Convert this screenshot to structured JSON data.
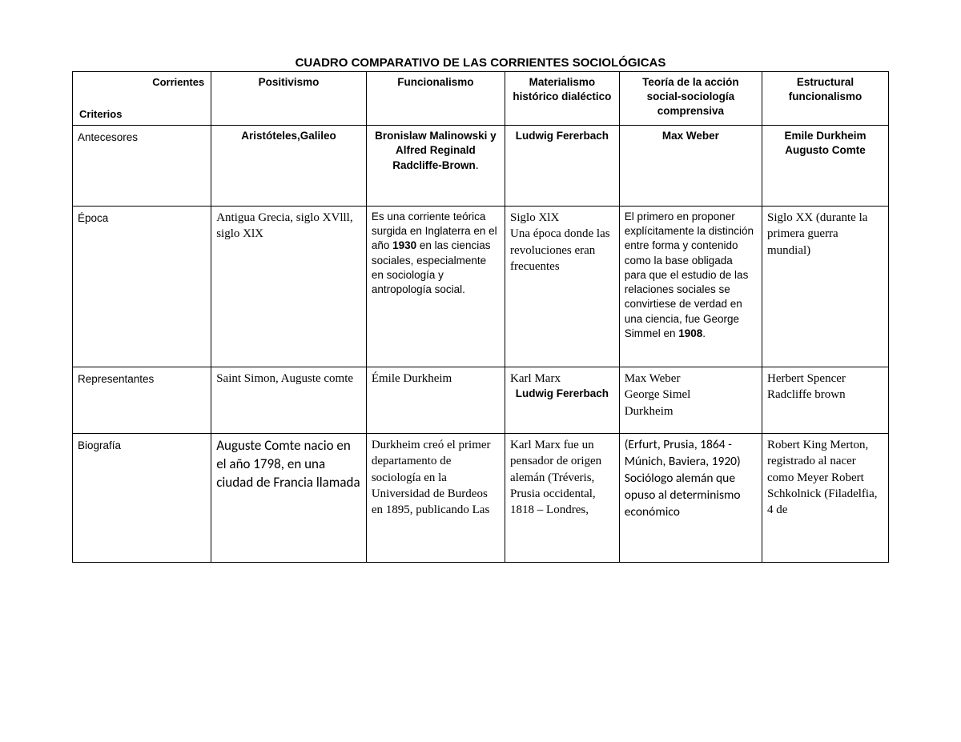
{
  "title": "CUADRO COMPARATIVO DE LAS CORRIENTES SOCIOLÓGICAS",
  "header": {
    "corner_top": "Corrientes",
    "corner_bottom": "Criterios",
    "cols": [
      "Positivismo",
      "Funcionalismo",
      "Materialismo histórico dialéctico",
      "Teoría de la acción social-sociología comprensiva",
      "Estructural funcionalismo"
    ]
  },
  "rows": {
    "antecesores": {
      "label": "Antecesores",
      "positivismo": "Aristóteles,Galileo",
      "funcionalismo_line1": "Bronislaw Malinowski y Alfred Reginald Radcliffe-Brown",
      "funcionalismo_dot": ".",
      "materialismo": "Ludwig Fererbach",
      "accion": "Max Weber",
      "estructural": "Emile Durkheim Augusto Comte"
    },
    "epoca": {
      "label": "Época",
      "positivismo": "Antigua Grecia, siglo XVlll, siglo XlX",
      "func_pre": "Es una corriente teórica surgida en Inglaterra en el año ",
      "func_bold": "1930",
      "func_post": " en las ciencias sociales, especialmente en sociología y antropología social.",
      "materialismo": "Siglo XlX\nUna época donde las revoluciones eran frecuentes",
      "accion_pre": "El primero en proponer explícitamente la distinción entre forma y contenido como la base obligada para que el estudio de las relaciones sociales se convirtiese de verdad en una ciencia, fue George Simmel en ",
      "accion_bold": "1908",
      "accion_post": ".",
      "estructural": "Siglo XX (durante la primera guerra mundial)"
    },
    "representantes": {
      "label": "Representantes",
      "positivismo": "Saint Simon, Auguste comte",
      "funcionalismo": "Émile Durkheim",
      "mat_line1": "Karl Marx",
      "mat_line2": "Ludwig Fererbach",
      "accion": "Max Weber\nGeorge Simel\nDurkheim",
      "estructural": "Herbert Spencer\nRadcliffe brown"
    },
    "biografia": {
      "label": "Biografía",
      "positivismo": "Auguste Comte nacio en el año 1798, en una ciudad de Francia llamada",
      "funcionalismo": "Durkheim creó el primer departamento de sociología en la Universidad de Burdeos en 1895, publicando Las",
      "materialismo": "Karl Marx fue un pensador de origen alemán (Tréveris, Prusia occidental, 1818 – Londres,",
      "accion": "(Erfurt, Prusia, 1864 - Múnich, Baviera, 1920) Sociólogo alemán que opuso al determinismo económico",
      "estructural": "Robert King Merton, registrado al nacer como Meyer Robert Schkolnick (Filadelfia, 4 de"
    }
  },
  "col_widths": [
    "170px",
    "190px",
    "170px",
    "140px",
    "175px",
    "155px"
  ]
}
